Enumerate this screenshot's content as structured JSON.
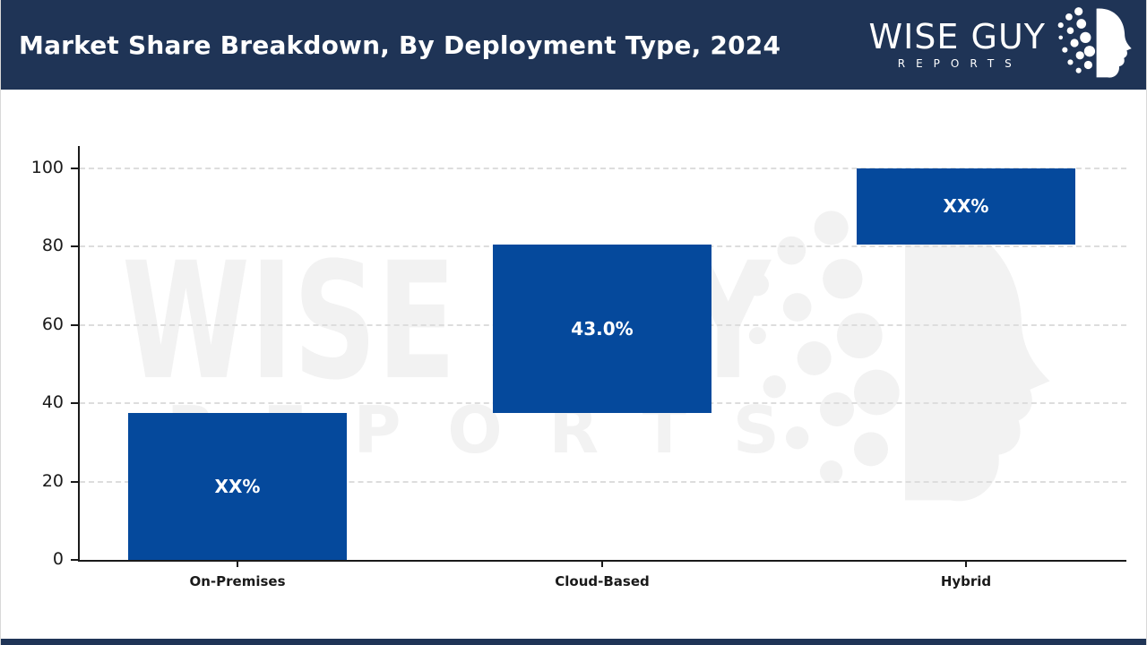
{
  "header": {
    "title": "Market Share Breakdown, By Deployment Type, 2024",
    "brand_line1": "WISE GUY",
    "brand_line2": "REPORTS"
  },
  "watermark": {
    "line1": "WISE GUY",
    "line2": "REPORTS"
  },
  "colors": {
    "header_bg": "#1f3456",
    "footer_bg": "#1f3456",
    "bar": "#05499c",
    "bar_label": "#ffffff",
    "grid": "#dddddd",
    "axis": "#1a1a1a",
    "watermark": "#f2f2f2",
    "title_text": "#ffffff"
  },
  "chart_data": {
    "type": "bar",
    "variant": "waterfall-stacked-percent",
    "title": "Market Share Breakdown, By Deployment Type, 2024",
    "categories": [
      "On-Premises",
      "Cloud-Based",
      "Hybrid"
    ],
    "bars": [
      {
        "category": "On-Premises",
        "start": 0,
        "end": 37.5,
        "value_label": "XX%"
      },
      {
        "category": "Cloud-Based",
        "start": 37.5,
        "end": 80.5,
        "value_label": "43.0%"
      },
      {
        "category": "Hybrid",
        "start": 80.5,
        "end": 100,
        "value_label": "XX%"
      }
    ],
    "xlabel": "",
    "ylabel": "",
    "ylim": [
      0,
      105
    ],
    "yticks": [
      0,
      20,
      40,
      60,
      80,
      100
    ],
    "grid": "horizontal-dashed",
    "legend": "none"
  }
}
